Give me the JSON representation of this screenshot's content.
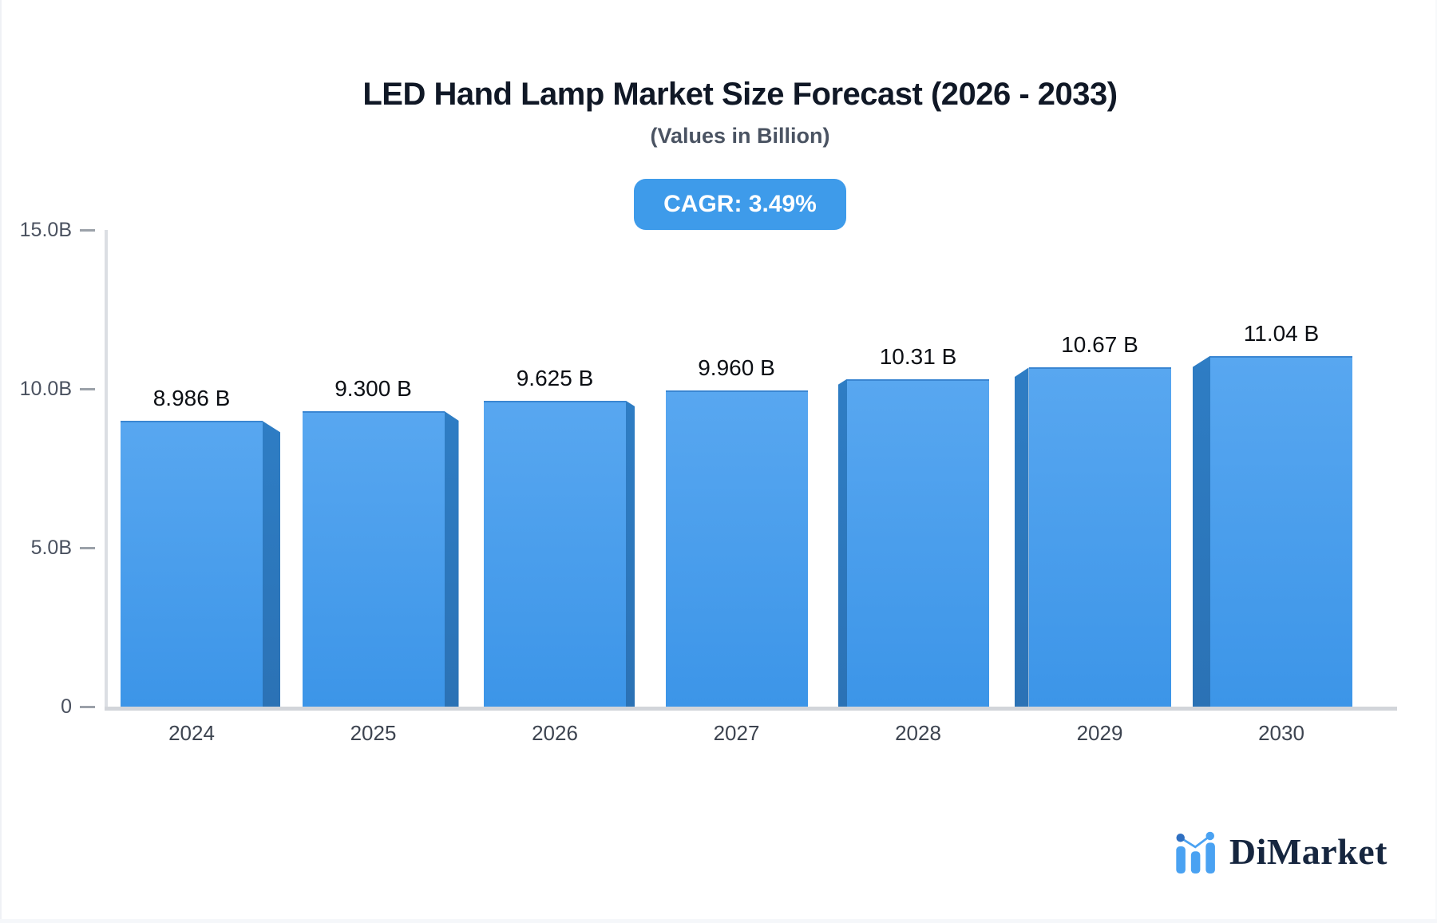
{
  "header": {
    "title": "LED Hand Lamp Market Size Forecast (2026 - 2033)",
    "subtitle": "(Values in Billion)",
    "cagr_badge": "CAGR: 3.49%"
  },
  "chart_data": {
    "type": "bar",
    "title": "LED Hand Lamp Market Size Forecast (2026 - 2033)",
    "subtitle": "(Values in Billion)",
    "cagr_percent": 3.49,
    "categories": [
      "2024",
      "2025",
      "2026",
      "2027",
      "2028",
      "2029",
      "2030"
    ],
    "values": [
      8.986,
      9.3,
      9.625,
      9.96,
      10.31,
      10.67,
      11.04
    ],
    "value_labels": [
      "8.986 B",
      "9.300 B",
      "9.625 B",
      "9.960 B",
      "10.31 B",
      "10.67 B",
      "11.04 B"
    ],
    "xlabel": "",
    "ylabel": "",
    "ylim": [
      0,
      15
    ],
    "yticks": [
      {
        "value": 0,
        "label": "0"
      },
      {
        "value": 5,
        "label": "5.0B"
      },
      {
        "value": 10,
        "label": "10.0B"
      },
      {
        "value": 15,
        "label": "15.0B"
      }
    ],
    "grid": false,
    "legend": false,
    "bar_style": "3d-extruded"
  },
  "colors": {
    "badge_bg": "#3e9bea",
    "bar_front_top": "#58a7f0",
    "bar_front_bottom": "#3c95e8",
    "bar_side": "#2e7dc4",
    "axis_line": "#d2d5da",
    "logo_navy": "#16263f",
    "logo_blue": "#4aa2f2"
  },
  "logo": {
    "text": "DiMarket",
    "icon": "bar-chart-icon"
  }
}
